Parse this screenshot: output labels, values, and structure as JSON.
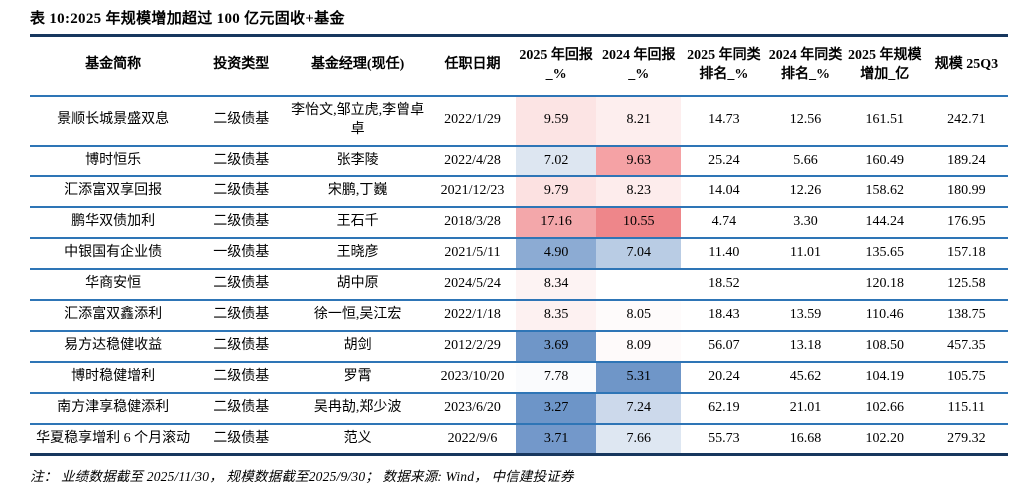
{
  "title": "表 10:2025 年规模增加超过 100 亿元固收+基金",
  "note": "注： 业绩数据截至 2025/11/30， 规模数据截至2025/9/30； 数据来源: Wind， 中信建投证券",
  "colors": {
    "heavy_border": "#17375E",
    "row_border": "#2E75B6",
    "heat_red_strong": "#ee868a",
    "heat_red_mid": "#f3a7aa",
    "heat_blue_strong": "#6f96c8",
    "heat_blue_light": "#ccd9eb"
  },
  "table": {
    "headers": [
      "基金简称",
      "投资类型",
      "基金经理(现任)",
      "任职日期",
      "2025 年回报_%",
      "2024 年回报_%",
      "2025 年同类排名_%",
      "2024 年同类排名_%",
      "2025 年规模增加_亿",
      "规模 25Q3"
    ],
    "column_keys": [
      "name",
      "type",
      "manager",
      "date",
      "ret2025",
      "ret2024",
      "rank2025",
      "rank2024",
      "scale_inc",
      "scale"
    ],
    "rows": [
      {
        "name": "景顺长城景盛双息",
        "type": "二级债基",
        "manager": "李怡文,邹立虎,李曾卓卓",
        "date": "2022/1/29",
        "ret2025": "9.59",
        "ret2024": "8.21",
        "rank2025": "14.73",
        "rank2024": "12.56",
        "scale_inc": "161.51",
        "scale": "242.71",
        "ret2025_bg": "#fce4e4",
        "ret2024_bg": "#fdeeee"
      },
      {
        "name": "博时恒乐",
        "type": "二级债基",
        "manager": "张李陵",
        "date": "2022/4/28",
        "ret2025": "7.02",
        "ret2024": "9.63",
        "rank2025": "25.24",
        "rank2024": "5.66",
        "scale_inc": "160.49",
        "scale": "189.24",
        "ret2025_bg": "#dde6f1",
        "ret2024_bg": "#f5a2a5"
      },
      {
        "name": "汇添富双享回报",
        "type": "二级债基",
        "manager": "宋鹏,丁巍",
        "date": "2021/12/23",
        "ret2025": "9.79",
        "ret2024": "8.23",
        "rank2025": "14.04",
        "rank2024": "12.26",
        "scale_inc": "158.62",
        "scale": "180.99",
        "ret2025_bg": "#fce1e1",
        "ret2024_bg": "#fdecec"
      },
      {
        "name": "鹏华双债加利",
        "type": "二级债基",
        "manager": "王石千",
        "date": "2018/3/28",
        "ret2025": "17.16",
        "ret2024": "10.55",
        "rank2025": "4.74",
        "rank2024": "3.30",
        "scale_inc": "144.24",
        "scale": "176.95",
        "ret2025_bg": "#f3a7aa",
        "ret2024_bg": "#ee868a"
      },
      {
        "name": "中银国有企业债",
        "type": "一级债基",
        "manager": "王晓彦",
        "date": "2021/5/11",
        "ret2025": "4.90",
        "ret2024": "7.04",
        "rank2025": "11.40",
        "rank2024": "11.01",
        "scale_inc": "135.65",
        "scale": "157.18",
        "ret2025_bg": "#8cabd3",
        "ret2024_bg": "#b9cce4"
      },
      {
        "name": "华商安恒",
        "type": "二级债基",
        "manager": "胡中原",
        "date": "2024/5/24",
        "ret2025": "8.34",
        "ret2024": "",
        "rank2025": "18.52",
        "rank2024": "",
        "scale_inc": "120.18",
        "scale": "125.58",
        "ret2025_bg": "#fdf3f3",
        "ret2024_bg": ""
      },
      {
        "name": "汇添富双鑫添利",
        "type": "二级债基",
        "manager": "徐一恒,吴江宏",
        "date": "2022/1/18",
        "ret2025": "8.35",
        "ret2024": "8.05",
        "rank2025": "18.43",
        "rank2024": "13.59",
        "scale_inc": "110.46",
        "scale": "138.75",
        "ret2025_bg": "#fdf1f1",
        "ret2024_bg": "#fefbfb"
      },
      {
        "name": "易方达稳健收益",
        "type": "二级债基",
        "manager": "胡剑",
        "date": "2012/2/29",
        "ret2025": "3.69",
        "ret2024": "8.09",
        "rank2025": "56.07",
        "rank2024": "13.18",
        "scale_inc": "108.50",
        "scale": "457.35",
        "ret2025_bg": "#6f96c8",
        "ret2024_bg": "#fefafa"
      },
      {
        "name": "博时稳健增利",
        "type": "二级债基",
        "manager": "罗霄",
        "date": "2023/10/20",
        "ret2025": "7.78",
        "ret2024": "5.31",
        "rank2025": "20.24",
        "rank2024": "45.62",
        "scale_inc": "104.19",
        "scale": "105.75",
        "ret2025_bg": "#fafbfd",
        "ret2024_bg": "#6f96c8"
      },
      {
        "name": "南方津享稳健添利",
        "type": "二级债基",
        "manager": "吴冉劼,郑少波",
        "date": "2023/6/20",
        "ret2025": "3.27",
        "ret2024": "7.24",
        "rank2025": "62.19",
        "rank2024": "21.01",
        "scale_inc": "102.66",
        "scale": "115.11",
        "ret2025_bg": "#6d95c8",
        "ret2024_bg": "#ccd9eb"
      },
      {
        "name": "华夏稳享增利 6 个月滚动",
        "type": "二级债基",
        "manager": "范义",
        "date": "2022/9/6",
        "ret2025": "3.71",
        "ret2024": "7.66",
        "rank2025": "55.73",
        "rank2024": "16.68",
        "scale_inc": "102.20",
        "scale": "279.32",
        "ret2025_bg": "#7398ca",
        "ret2024_bg": "#dee7f2"
      }
    ]
  }
}
